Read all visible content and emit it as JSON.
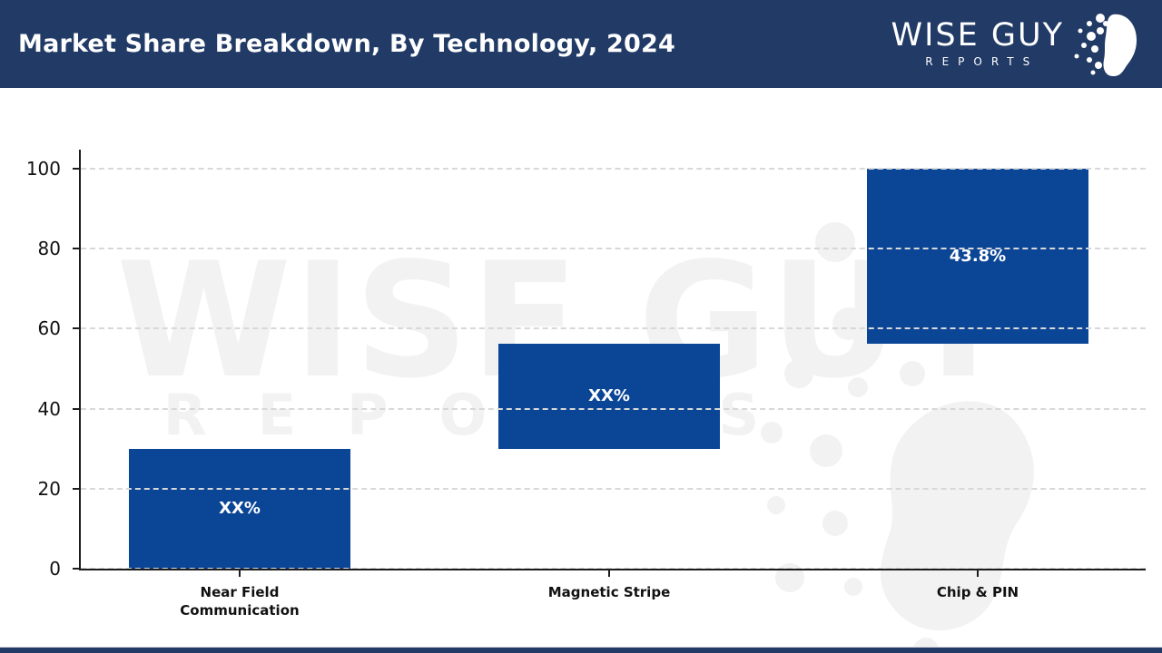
{
  "header": {
    "title": "Market Share Breakdown, By Technology, 2024",
    "logo": {
      "line1": "WISE GUY",
      "line2": "REPORTS"
    }
  },
  "watermark": {
    "line1": "WISE GUY",
    "line2": "REPORTS"
  },
  "colors": {
    "header_bg": "#213a66",
    "footer_bg": "#213a66",
    "bar": "#0b4596",
    "grid": "#d8d8d8",
    "axis": "#1c1c1c",
    "tick_label": "#111111",
    "value_label": "#ffffff",
    "watermark": "#f2f2f2"
  },
  "chart_data": {
    "type": "bar",
    "subtype": "waterfall",
    "title": "Market Share Breakdown, By Technology, 2024",
    "categories": [
      "Near Field Communication",
      "Magnetic Stripe",
      "Chip & PIN"
    ],
    "series": [
      {
        "name": "Market Share",
        "segments": [
          {
            "category": "Near Field Communication",
            "start": 0,
            "end": 30,
            "label": "XX%"
          },
          {
            "category": "Magnetic Stripe",
            "start": 30,
            "end": 56.2,
            "label": "XX%"
          },
          {
            "category": "Chip & PIN",
            "start": 56.2,
            "end": 100,
            "label": "43.8%"
          }
        ]
      }
    ],
    "xlabel": "",
    "ylabel": "",
    "ylim": [
      0,
      104.8
    ],
    "yticks": [
      0,
      20,
      40,
      60,
      80,
      100
    ],
    "grid": "dashed-horizontal",
    "legend": "none"
  }
}
